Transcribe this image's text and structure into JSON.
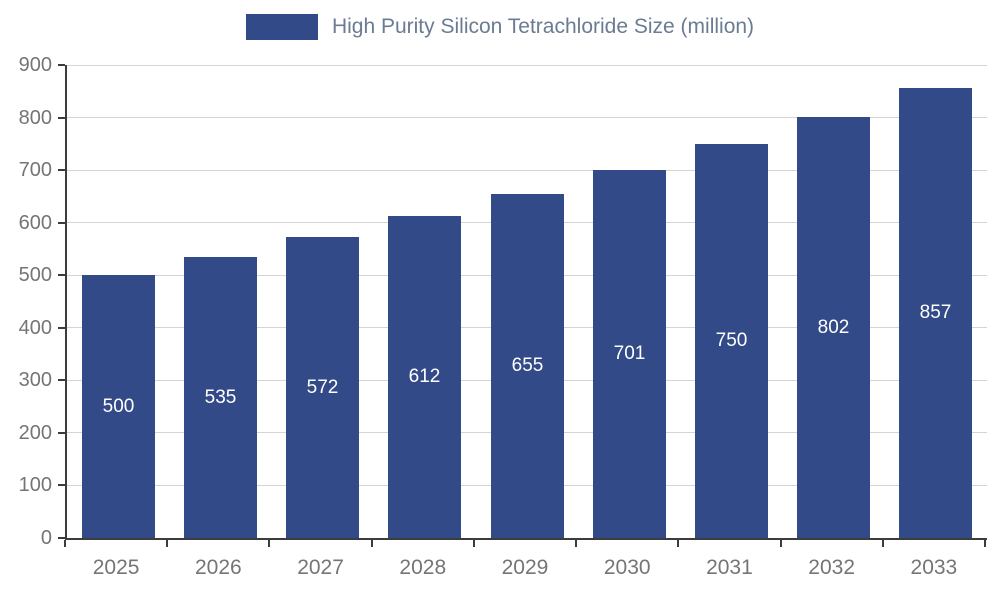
{
  "chart_data": {
    "type": "bar",
    "title": "High Purity Silicon Tetrachloride Size (million)",
    "categories": [
      "2025",
      "2026",
      "2027",
      "2028",
      "2029",
      "2030",
      "2031",
      "2032",
      "2033"
    ],
    "values": [
      500,
      535,
      572,
      612,
      655,
      701,
      750,
      802,
      857
    ],
    "xlabel": "",
    "ylabel": "",
    "ylim": [
      0,
      900
    ],
    "ytick_step": 100,
    "grid": true,
    "legend_position": "top",
    "value_labels": "centered-inside-white",
    "colors": {
      "bar": "#334a88",
      "value_label": "#ffffff",
      "axis_line": "#3c3c3c",
      "gridline": "#d4d4d4",
      "tick_label": "#757575",
      "legend_text": "#6b7b93"
    }
  }
}
